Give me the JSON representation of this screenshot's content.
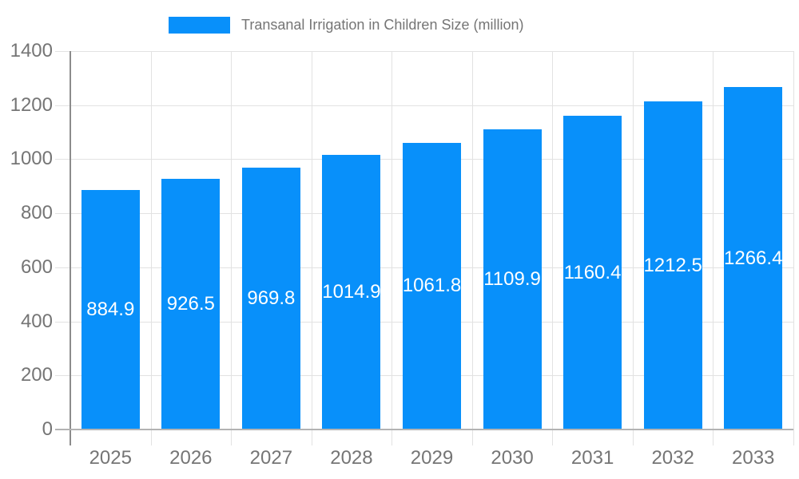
{
  "legend": {
    "label": "Transanal Irrigation in Children Size (million)"
  },
  "colors": {
    "bar": "#0890fa",
    "grid": "#e2e2e2",
    "axis_y": "#8c8c8c",
    "axis_x": "#b3b3b3",
    "text": "#757575",
    "value_label": "#ffffff",
    "background": "#ffffff"
  },
  "chart_data": {
    "type": "bar",
    "title": "Transanal Irrigation in Children Size (million)",
    "categories": [
      "2025",
      "2026",
      "2027",
      "2028",
      "2029",
      "2030",
      "2031",
      "2032",
      "2033"
    ],
    "series": [
      {
        "name": "Transanal Irrigation in Children Size (million)",
        "values": [
          884.9,
          926.5,
          969.8,
          1014.9,
          1061.8,
          1109.9,
          1160.4,
          1212.5,
          1266.4
        ]
      }
    ],
    "xlabel": "",
    "ylabel": "",
    "ylim": [
      0,
      1400
    ],
    "yticks": [
      0,
      200,
      400,
      600,
      800,
      1000,
      1200,
      1400
    ],
    "grid": true,
    "legend_position": "top",
    "value_label_position": "inside-center"
  }
}
